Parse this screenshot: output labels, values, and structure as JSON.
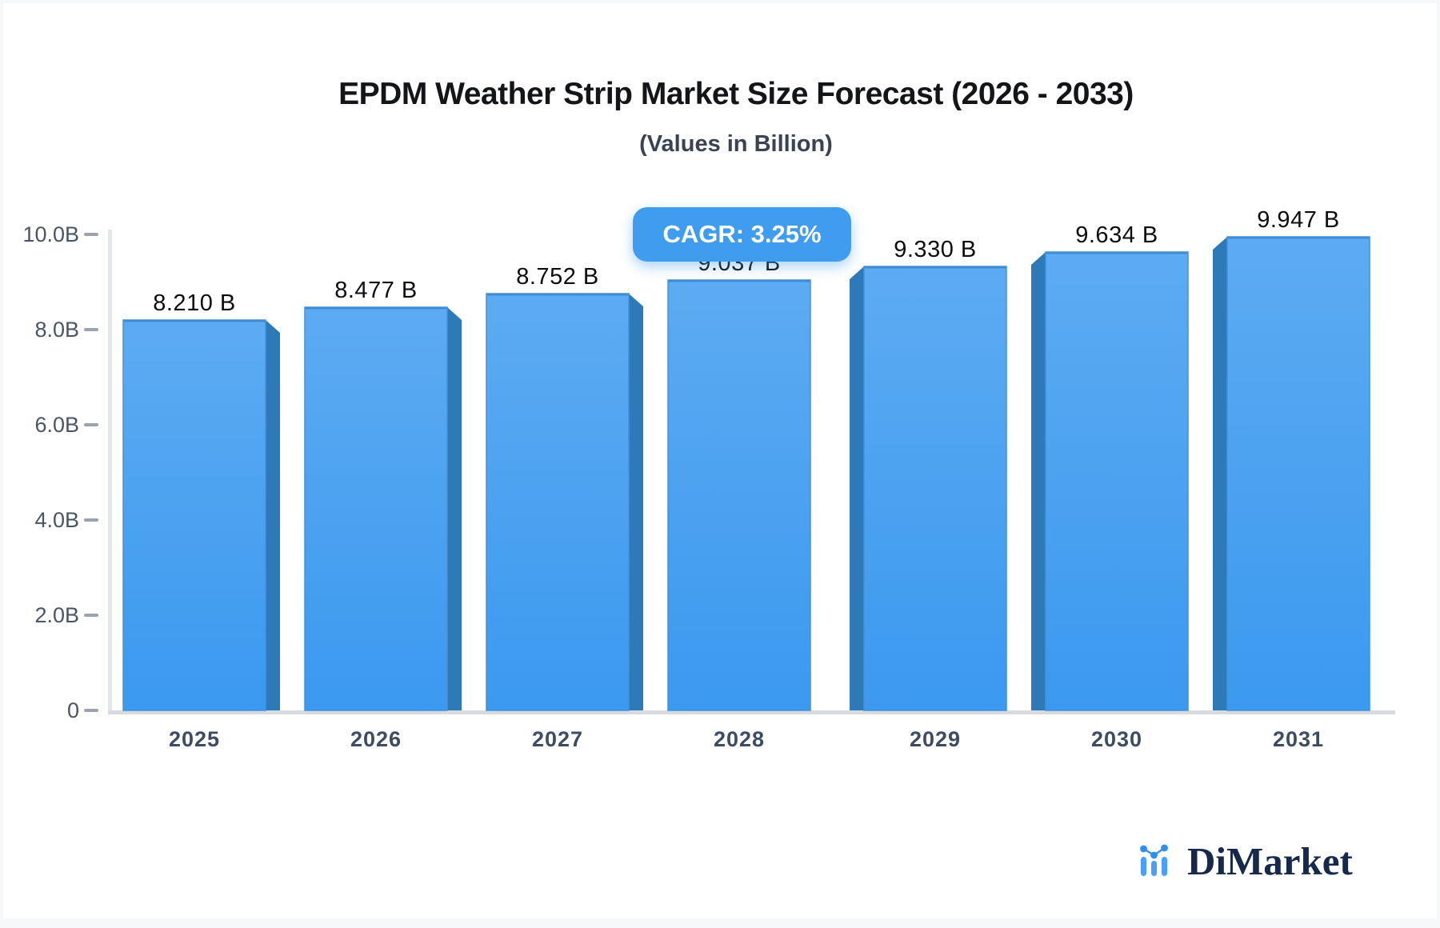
{
  "header": {
    "title": "EPDM Weather Strip Market Size Forecast (2026 - 2033)",
    "subtitle": "(Values in Billion)"
  },
  "badge": {
    "label": "CAGR: 3.25%",
    "color": "#3f9cef",
    "text_color": "#ffffff"
  },
  "chart_data": {
    "type": "bar",
    "categories": [
      "2025",
      "2026",
      "2027",
      "2028",
      "2029",
      "2030",
      "2031"
    ],
    "values": [
      8.21,
      8.477,
      8.752,
      9.037,
      9.33,
      9.634,
      9.947
    ],
    "value_labels": [
      "8.210 B",
      "8.477 B",
      "8.752 B",
      "9.037 B",
      "9.330 B",
      "9.634 B",
      "9.947 B"
    ],
    "title": "EPDM Weather Strip Market Size Forecast (2026 - 2033)",
    "subtitle": "(Values in Billion)",
    "xlabel": "",
    "ylabel": "",
    "ylim": [
      0,
      10
    ],
    "yticks": [
      {
        "value": 0,
        "label": "0"
      },
      {
        "value": 2,
        "label": "2.0B"
      },
      {
        "value": 4,
        "label": "4.0B"
      },
      {
        "value": 6,
        "label": "6.0B"
      },
      {
        "value": 8,
        "label": "8.0B"
      },
      {
        "value": 10,
        "label": "10.0B"
      }
    ],
    "grid": false,
    "legend": false,
    "annotations": [
      "CAGR: 3.25%"
    ],
    "bar_style": "3d-perspective-center",
    "colors": {
      "bar_top": "#5dabf2",
      "bar_bottom": "#3b99ef",
      "bar_edge": "#4391d9",
      "bar_side": "#2e7ab8",
      "axis_line": "#d7dbe0",
      "tick_text": "#4a5568",
      "category_text": "#3d4c63",
      "value_text": "#0c0d0f"
    }
  },
  "logo": {
    "text": "DiMarket",
    "icon": "bar-line-chart-icon",
    "text_color": "#16294a",
    "icon_color": "#4aa0f6"
  }
}
